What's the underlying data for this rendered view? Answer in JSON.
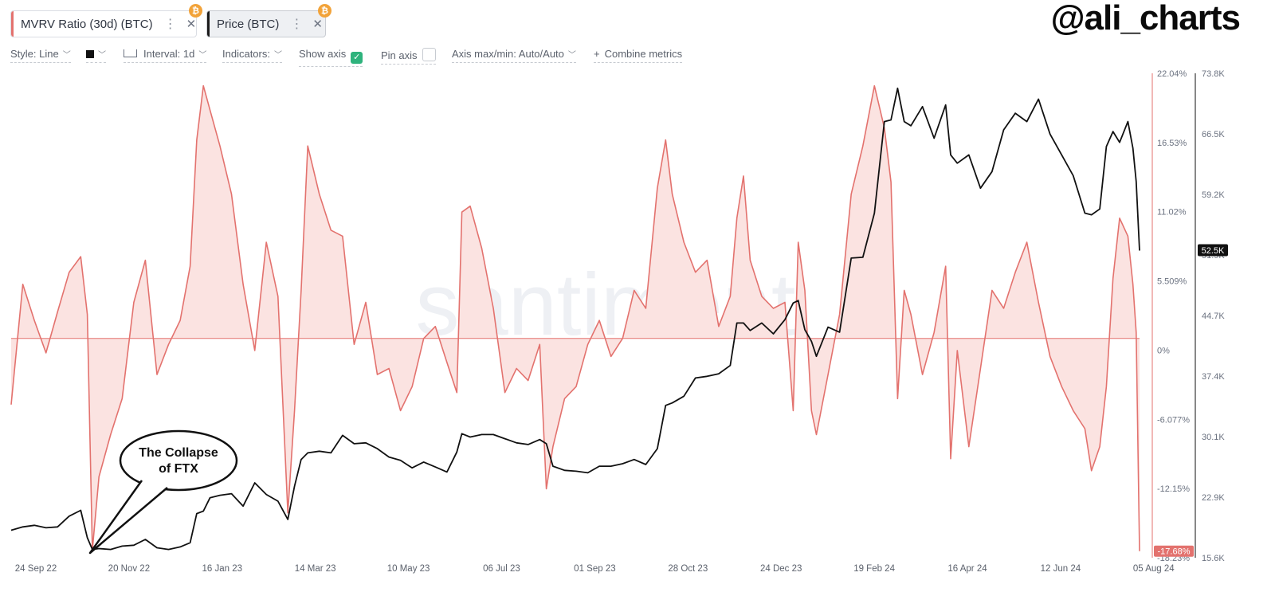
{
  "tabs": [
    {
      "label": "MVRV Ratio (30d) (BTC)",
      "menu_icon": "more-vertical-icon",
      "close_icon": "close-icon",
      "coin_icon": "bitcoin-icon",
      "accent": "#e3726e"
    },
    {
      "label": "Price (BTC)",
      "menu_icon": "more-vertical-icon",
      "close_icon": "close-icon",
      "coin_icon": "bitcoin-icon",
      "accent": "#1b1b1b"
    }
  ],
  "handle": "@ali_charts",
  "toolbar": {
    "style": "Style: Line",
    "interval": "Interval: 1d",
    "indicators": "Indicators:",
    "show_axis": "Show axis",
    "show_axis_checked": true,
    "pin_axis": "Pin axis",
    "pin_axis_checked": false,
    "axis_maxmin": "Axis max/min: Auto/Auto",
    "combine": "Combine metrics"
  },
  "chart_data": {
    "type": "line",
    "background_watermark": "santiment",
    "x_tick_labels": [
      "24 Sep 22",
      "20 Nov 22",
      "16 Jan 23",
      "14 Mar 23",
      "10 May 23",
      "06 Jul 23",
      "01 Sep 23",
      "28 Oct 23",
      "24 Dec 23",
      "19 Feb 24",
      "16 Apr 24",
      "12 Jun 24",
      "05 Aug 24"
    ],
    "mvrv_axis": {
      "ticks": [
        "22.04%",
        "16.53%",
        "11.02%",
        "5.509%",
        "0%",
        "-6.077%",
        "-12.15%",
        "-18.23%"
      ],
      "range": [
        -18.23,
        22.04
      ],
      "color": "#e3726e",
      "current_label": "-17.68%"
    },
    "price_axis": {
      "ticks": [
        "73.8K",
        "66.5K",
        "59.2K",
        "51.9K",
        "44.7K",
        "37.4K",
        "30.1K",
        "22.9K",
        "15.6K"
      ],
      "range": [
        15600,
        73800
      ],
      "current_label": "52.5K"
    },
    "series": [
      {
        "name": "MVRV Ratio (30d) (BTC)",
        "color": "#e3726e",
        "fill": "#fbe3e1",
        "axis": "mvrv",
        "x": [
          "2022-09-24",
          "2022-10-01",
          "2022-10-08",
          "2022-10-15",
          "2022-10-22",
          "2022-10-29",
          "2022-11-05",
          "2022-11-09",
          "2022-11-12",
          "2022-11-16",
          "2022-11-23",
          "2022-11-30",
          "2022-12-07",
          "2022-12-14",
          "2022-12-21",
          "2022-12-28",
          "2023-01-04",
          "2023-01-10",
          "2023-01-14",
          "2023-01-18",
          "2023-01-22",
          "2023-01-28",
          "2023-02-04",
          "2023-02-11",
          "2023-02-18",
          "2023-02-25",
          "2023-03-04",
          "2023-03-10",
          "2023-03-14",
          "2023-03-18",
          "2023-03-22",
          "2023-03-29",
          "2023-04-05",
          "2023-04-12",
          "2023-04-19",
          "2023-04-26",
          "2023-05-03",
          "2023-05-10",
          "2023-05-17",
          "2023-05-24",
          "2023-05-31",
          "2023-06-07",
          "2023-06-14",
          "2023-06-20",
          "2023-06-23",
          "2023-06-28",
          "2023-07-05",
          "2023-07-12",
          "2023-07-19",
          "2023-07-26",
          "2023-08-02",
          "2023-08-09",
          "2023-08-13",
          "2023-08-17",
          "2023-08-24",
          "2023-08-31",
          "2023-09-07",
          "2023-09-14",
          "2023-09-21",
          "2023-09-28",
          "2023-10-05",
          "2023-10-12",
          "2023-10-19",
          "2023-10-24",
          "2023-10-28",
          "2023-11-04",
          "2023-11-11",
          "2023-11-18",
          "2023-11-25",
          "2023-12-02",
          "2023-12-06",
          "2023-12-10",
          "2023-12-14",
          "2023-12-21",
          "2023-12-28",
          "2024-01-04",
          "2024-01-09",
          "2024-01-12",
          "2024-01-16",
          "2024-01-20",
          "2024-01-23",
          "2024-01-30",
          "2024-02-06",
          "2024-02-13",
          "2024-02-20",
          "2024-02-27",
          "2024-03-04",
          "2024-03-08",
          "2024-03-12",
          "2024-03-16",
          "2024-03-20",
          "2024-03-27",
          "2024-04-03",
          "2024-04-10",
          "2024-04-13",
          "2024-04-17",
          "2024-04-24",
          "2024-05-01",
          "2024-05-08",
          "2024-05-15",
          "2024-05-22",
          "2024-05-29",
          "2024-06-05",
          "2024-06-12",
          "2024-06-19",
          "2024-06-26",
          "2024-07-03",
          "2024-07-07",
          "2024-07-12",
          "2024-07-16",
          "2024-07-20",
          "2024-07-24",
          "2024-07-29",
          "2024-08-01",
          "2024-08-03",
          "2024-08-05"
        ],
        "values": [
          -5.5,
          4.5,
          1.5,
          -1.2,
          2.2,
          5.5,
          6.8,
          2.0,
          -17.6,
          -11.5,
          -8.0,
          -5.0,
          3.0,
          6.5,
          -3.0,
          -0.5,
          1.5,
          6.0,
          16.5,
          21.0,
          19.0,
          16.0,
          12.0,
          4.5,
          -1.0,
          8.0,
          3.5,
          -14.5,
          -6.0,
          4.0,
          16.0,
          12.0,
          9.0,
          8.5,
          -0.5,
          3.0,
          -3.0,
          -2.5,
          -6.0,
          -4.0,
          0.0,
          1.0,
          -2.0,
          -4.5,
          10.5,
          11.0,
          7.5,
          2.5,
          -4.5,
          -2.5,
          -3.5,
          -0.5,
          -12.5,
          -9.0,
          -5.0,
          -4.0,
          -0.5,
          1.5,
          -1.5,
          0.0,
          4.0,
          2.5,
          12.5,
          16.5,
          12.0,
          8.0,
          5.5,
          6.5,
          1.0,
          3.5,
          10.0,
          13.5,
          6.5,
          3.5,
          2.5,
          3.0,
          -6.0,
          8.0,
          4.0,
          -6.0,
          -8.0,
          -3.0,
          2.0,
          12.0,
          16.0,
          21.0,
          17.5,
          13.0,
          -5.0,
          4.0,
          2.0,
          -3.0,
          0.5,
          6.0,
          -10.0,
          -1.0,
          -9.0,
          -2.5,
          4.0,
          2.5,
          5.5,
          8.0,
          3.0,
          -1.5,
          -4.0,
          -6.0,
          -7.5,
          -11.0,
          -9.0,
          -4.0,
          5.0,
          10.0,
          8.5,
          4.5,
          0.5,
          -17.68
        ]
      },
      {
        "name": "Price (BTC)",
        "color": "#111111",
        "axis": "price",
        "x": [
          "2022-09-24",
          "2022-10-01",
          "2022-10-08",
          "2022-10-15",
          "2022-10-22",
          "2022-10-29",
          "2022-11-05",
          "2022-11-09",
          "2022-11-12",
          "2022-11-16",
          "2022-11-23",
          "2022-11-30",
          "2022-12-07",
          "2022-12-14",
          "2022-12-21",
          "2022-12-28",
          "2023-01-04",
          "2023-01-10",
          "2023-01-14",
          "2023-01-18",
          "2023-01-22",
          "2023-01-28",
          "2023-02-04",
          "2023-02-11",
          "2023-02-18",
          "2023-02-25",
          "2023-03-04",
          "2023-03-10",
          "2023-03-14",
          "2023-03-18",
          "2023-03-22",
          "2023-03-29",
          "2023-04-05",
          "2023-04-12",
          "2023-04-19",
          "2023-04-26",
          "2023-05-03",
          "2023-05-10",
          "2023-05-17",
          "2023-05-24",
          "2023-05-31",
          "2023-06-07",
          "2023-06-14",
          "2023-06-20",
          "2023-06-23",
          "2023-06-28",
          "2023-07-05",
          "2023-07-12",
          "2023-07-19",
          "2023-07-26",
          "2023-08-02",
          "2023-08-09",
          "2023-08-13",
          "2023-08-17",
          "2023-08-24",
          "2023-08-31",
          "2023-09-07",
          "2023-09-14",
          "2023-09-21",
          "2023-09-28",
          "2023-10-05",
          "2023-10-12",
          "2023-10-19",
          "2023-10-24",
          "2023-10-28",
          "2023-11-04",
          "2023-11-11",
          "2023-11-18",
          "2023-11-25",
          "2023-12-02",
          "2023-12-06",
          "2023-12-10",
          "2023-12-14",
          "2023-12-21",
          "2023-12-28",
          "2024-01-04",
          "2024-01-09",
          "2024-01-12",
          "2024-01-16",
          "2024-01-20",
          "2024-01-23",
          "2024-01-30",
          "2024-02-06",
          "2024-02-13",
          "2024-02-20",
          "2024-02-27",
          "2024-03-04",
          "2024-03-08",
          "2024-03-12",
          "2024-03-16",
          "2024-03-20",
          "2024-03-27",
          "2024-04-03",
          "2024-04-10",
          "2024-04-13",
          "2024-04-17",
          "2024-04-24",
          "2024-05-01",
          "2024-05-08",
          "2024-05-15",
          "2024-05-22",
          "2024-05-29",
          "2024-06-05",
          "2024-06-12",
          "2024-06-19",
          "2024-06-26",
          "2024-07-03",
          "2024-07-07",
          "2024-07-12",
          "2024-07-16",
          "2024-07-20",
          "2024-07-24",
          "2024-07-29",
          "2024-08-01",
          "2024-08-03",
          "2024-08-05"
        ],
        "values": [
          18900,
          19300,
          19500,
          19200,
          19300,
          20600,
          21300,
          18000,
          16600,
          16700,
          16600,
          17000,
          17100,
          17800,
          16800,
          16600,
          16900,
          17400,
          20900,
          21200,
          22800,
          23100,
          23300,
          21800,
          24600,
          23200,
          22400,
          20200,
          24200,
          27400,
          28200,
          28400,
          28200,
          30300,
          29300,
          29400,
          28700,
          27700,
          27300,
          26400,
          27100,
          26500,
          25900,
          28300,
          30500,
          30100,
          30400,
          30400,
          29900,
          29400,
          29200,
          29800,
          29300,
          26600,
          26100,
          26000,
          25800,
          26600,
          26600,
          26900,
          27400,
          26800,
          28700,
          33900,
          34200,
          35000,
          37200,
          37400,
          37700,
          38700,
          43800,
          43800,
          42900,
          43800,
          42500,
          44200,
          46200,
          46500,
          43000,
          41600,
          39800,
          43300,
          42700,
          51600,
          51700,
          57000,
          68000,
          68200,
          72000,
          68000,
          67500,
          69800,
          66000,
          70000,
          64000,
          63000,
          64000,
          60000,
          62000,
          67000,
          69000,
          68000,
          70700,
          66500,
          64000,
          61500,
          57000,
          56800,
          57500,
          65000,
          66800,
          65500,
          68000,
          64800,
          60800,
          52500
        ]
      }
    ]
  },
  "annotation": {
    "line1": "The Collapse",
    "line2": "of FTX"
  }
}
